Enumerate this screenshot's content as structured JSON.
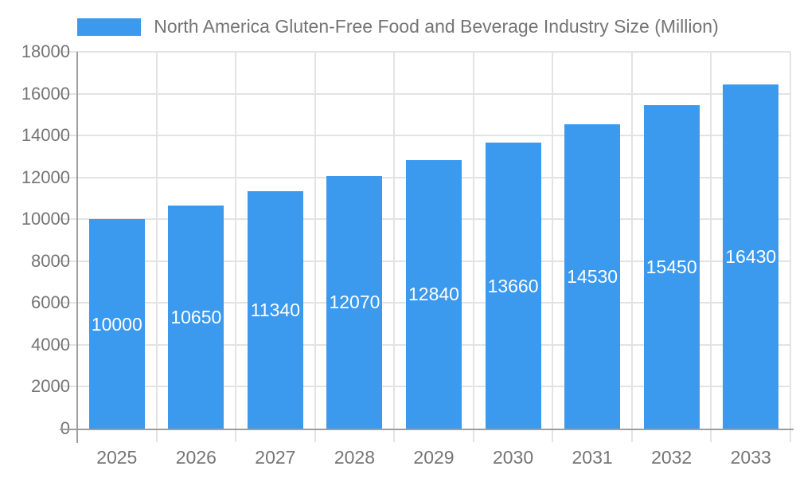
{
  "chart_data": {
    "type": "bar",
    "title": "North America Gluten-Free Food and Beverage Industry Size (Million)",
    "categories": [
      "2025",
      "2026",
      "2027",
      "2028",
      "2029",
      "2030",
      "2031",
      "2032",
      "2033"
    ],
    "values": [
      10000,
      10650,
      11340,
      12070,
      12840,
      13660,
      14530,
      15450,
      16430
    ],
    "xlabel": "",
    "ylabel": "",
    "ylim": [
      0,
      18000
    ],
    "yticks": [
      0,
      2000,
      4000,
      6000,
      8000,
      10000,
      12000,
      14000,
      16000,
      18000
    ],
    "grid": true,
    "legend_position": "top",
    "value_labels": "centered-inside-bars",
    "colors": {
      "bar": "#3b99ee",
      "bar_value_text": "#ffffff",
      "axis_text": "#757575",
      "legend_text": "#757575",
      "gridline": "#e3e3e3",
      "axis_line": "#9e9e9e",
      "background": "#ffffff"
    }
  }
}
